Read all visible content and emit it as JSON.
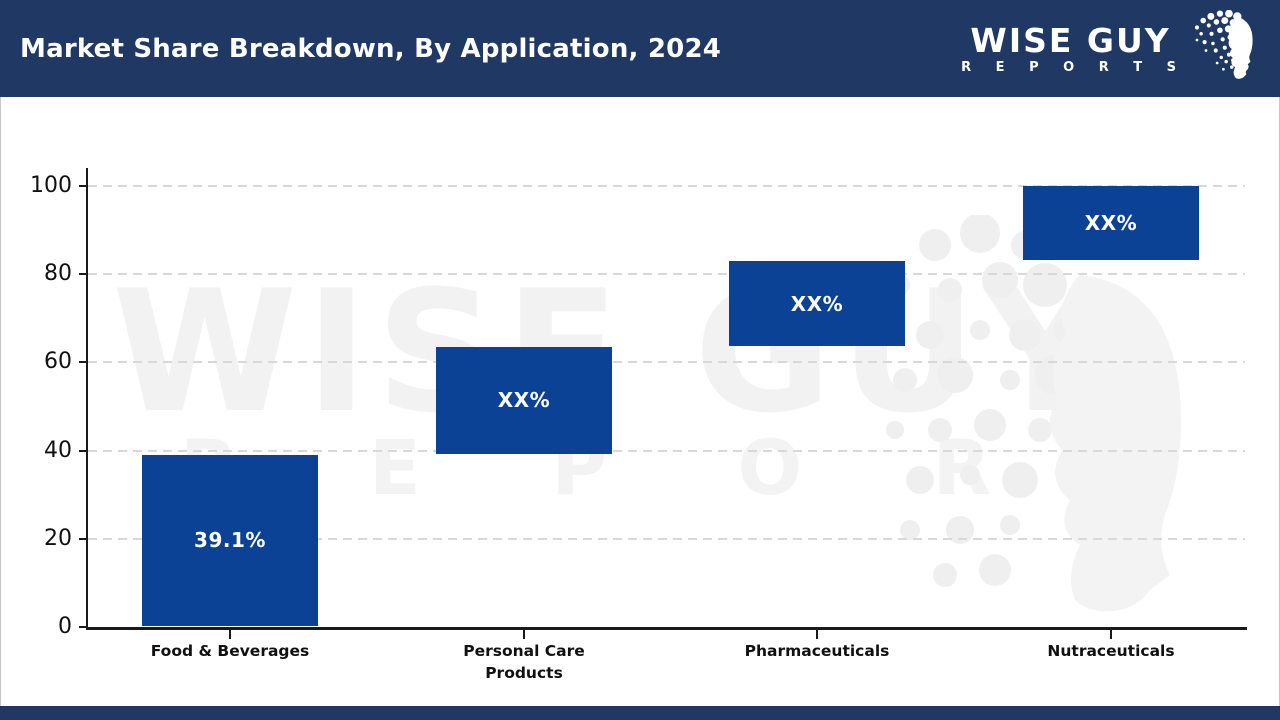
{
  "header": {
    "title": "Market Share Breakdown, By Application, 2024",
    "bg_color": "#203864",
    "logo": {
      "line1": "WISE GUY",
      "line2": "R E P O R T S"
    }
  },
  "watermark": {
    "line1": "WISE GUY",
    "line2": "R E P O R T S"
  },
  "chart_data": {
    "type": "bar",
    "subtype": "floating-waterfall-segments",
    "title": "Market Share Breakdown, By Application, 2024",
    "categories": [
      "Food & Beverages",
      "Personal Care Products",
      "Pharmaceuticals",
      "Nutraceuticals"
    ],
    "tick_labels": [
      "Food & Beverages",
      "Personal Care\nProducts",
      "Pharmaceuticals",
      "Nutraceuticals"
    ],
    "bars": [
      {
        "category": "Food & Beverages",
        "start": 0,
        "end": 39.1,
        "label": "39.1%"
      },
      {
        "category": "Personal Care Products",
        "start": 39.1,
        "end": 63.4,
        "label": "XX%"
      },
      {
        "category": "Pharmaceuticals",
        "start": 63.4,
        "end": 82.9,
        "label": "XX%"
      },
      {
        "category": "Nutraceuticals",
        "start": 82.9,
        "end": 100,
        "label": "XX%"
      }
    ],
    "xlabel": "",
    "ylabel": "",
    "ylim": [
      0,
      100
    ],
    "yticks": [
      0,
      20,
      40,
      60,
      80,
      100
    ],
    "grid": "horizontal-dashed",
    "legend": null,
    "bar_color": "#0b4295",
    "bar_label_color": "#ffffff",
    "axis_color": "#1a1a1a",
    "gridline_color": "#d8d8d8"
  }
}
